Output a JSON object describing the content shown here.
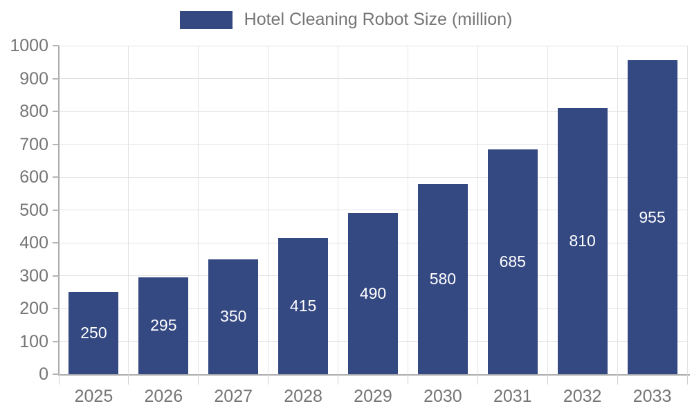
{
  "legend": {
    "label": "Hotel Cleaning Robot Size (million)"
  },
  "colors": {
    "bar": "#344882",
    "value_label": "#ffffff",
    "axis_text": "#757575",
    "gridline": "#e3e3e3",
    "axis_line": "#ababab"
  },
  "chart_data": {
    "type": "bar",
    "title": "Hotel Cleaning Robot Size (million)",
    "categories": [
      "2025",
      "2026",
      "2027",
      "2028",
      "2029",
      "2030",
      "2031",
      "2032",
      "2033"
    ],
    "values": [
      250,
      295,
      350,
      415,
      490,
      580,
      685,
      810,
      955
    ],
    "value_labels": [
      "250",
      "295",
      "350",
      "415",
      "490",
      "580",
      "685",
      "810",
      "955"
    ],
    "xlabel": "",
    "ylabel": "",
    "ylim": [
      0,
      1000
    ],
    "ytick_step": 100,
    "y_tick_labels": [
      "0",
      "100",
      "200",
      "300",
      "400",
      "500",
      "600",
      "700",
      "800",
      "900",
      "1000"
    ],
    "grid": true,
    "legend_position": "top-center",
    "value_label_position": "inside-center"
  }
}
